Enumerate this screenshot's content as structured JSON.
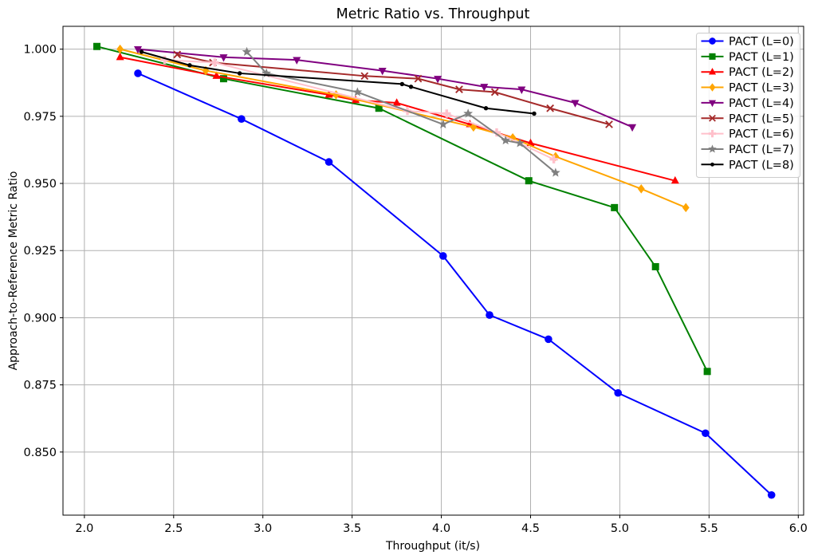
{
  "chart_data": {
    "type": "line",
    "title": "Metric Ratio vs. Throughput",
    "xlabel": "Throughput (it/s)",
    "ylabel": "Approach-to-Reference Metric Ratio",
    "xlim": [
      1.88,
      6.03
    ],
    "ylim": [
      0.8265,
      1.0085
    ],
    "grid": true,
    "grid_color": "#b0b0b0",
    "background": "#ffffff",
    "xticks": {
      "values": [
        2.0,
        2.5,
        3.0,
        3.5,
        4.0,
        4.5,
        5.0,
        5.5,
        6.0
      ],
      "labels": [
        "2.0",
        "2.5",
        "3.0",
        "3.5",
        "4.0",
        "4.5",
        "5.0",
        "5.5",
        "6.0"
      ]
    },
    "yticks": {
      "values": [
        0.85,
        0.875,
        0.9,
        0.925,
        0.95,
        0.975,
        1.0
      ],
      "labels": [
        "0.850",
        "0.875",
        "0.900",
        "0.925",
        "0.950",
        "0.975",
        "1.000"
      ]
    },
    "legend": {
      "position": "upper right",
      "entries": [
        "PACT (L=0)",
        "PACT (L=1)",
        "PACT (L=2)",
        "PACT (L=3)",
        "PACT (L=4)",
        "PACT (L=5)",
        "PACT (L=6)",
        "PACT (L=7)",
        "PACT (L=8)"
      ]
    },
    "series": [
      {
        "name": "PACT (L=0)",
        "color": "#0000ff",
        "marker": "circle",
        "points": [
          [
            2.3,
            0.991
          ],
          [
            2.88,
            0.974
          ],
          [
            3.37,
            0.958
          ],
          [
            4.01,
            0.923
          ],
          [
            4.27,
            0.901
          ],
          [
            4.6,
            0.892
          ],
          [
            4.99,
            0.872
          ],
          [
            5.48,
            0.857
          ],
          [
            5.85,
            0.834
          ]
        ]
      },
      {
        "name": "PACT (L=1)",
        "color": "#008000",
        "marker": "square",
        "points": [
          [
            2.07,
            1.001
          ],
          [
            2.78,
            0.989
          ],
          [
            3.65,
            0.978
          ],
          [
            4.49,
            0.951
          ],
          [
            4.97,
            0.941
          ],
          [
            5.2,
            0.919
          ],
          [
            5.49,
            0.88
          ]
        ]
      },
      {
        "name": "PACT (L=2)",
        "color": "#ff0000",
        "marker": "triangle-up",
        "points": [
          [
            2.2,
            0.997
          ],
          [
            2.74,
            0.99
          ],
          [
            3.37,
            0.983
          ],
          [
            3.52,
            0.981
          ],
          [
            3.75,
            0.98
          ],
          [
            4.16,
            0.972
          ],
          [
            4.5,
            0.965
          ],
          [
            5.31,
            0.951
          ]
        ]
      },
      {
        "name": "PACT (L=3)",
        "color": "#ffa500",
        "marker": "diamond",
        "points": [
          [
            2.2,
            1.0
          ],
          [
            2.68,
            0.992
          ],
          [
            3.41,
            0.983
          ],
          [
            4.18,
            0.971
          ],
          [
            4.4,
            0.967
          ],
          [
            4.64,
            0.96
          ],
          [
            5.12,
            0.948
          ],
          [
            5.37,
            0.941
          ]
        ]
      },
      {
        "name": "PACT (L=4)",
        "color": "#800080",
        "marker": "triangle-down",
        "points": [
          [
            2.3,
            1.0
          ],
          [
            2.78,
            0.997
          ],
          [
            3.19,
            0.996
          ],
          [
            3.67,
            0.992
          ],
          [
            3.98,
            0.989
          ],
          [
            4.24,
            0.986
          ],
          [
            4.45,
            0.985
          ],
          [
            4.75,
            0.98
          ],
          [
            5.07,
            0.971
          ]
        ]
      },
      {
        "name": "PACT (L=5)",
        "color": "#a52a2a",
        "marker": "x",
        "points": [
          [
            2.52,
            0.998
          ],
          [
            2.72,
            0.995
          ],
          [
            3.57,
            0.99
          ],
          [
            3.87,
            0.989
          ],
          [
            4.1,
            0.985
          ],
          [
            4.3,
            0.984
          ],
          [
            4.61,
            0.978
          ],
          [
            4.94,
            0.972
          ]
        ]
      },
      {
        "name": "PACT (L=6)",
        "color": "#ffc0cb",
        "marker": "plus",
        "points": [
          [
            2.45,
            0.996
          ],
          [
            2.73,
            0.995
          ],
          [
            3.81,
            0.977
          ],
          [
            4.03,
            0.976
          ],
          [
            4.31,
            0.969
          ],
          [
            4.63,
            0.959
          ]
        ]
      },
      {
        "name": "PACT (L=7)",
        "color": "#808080",
        "marker": "star",
        "points": [
          [
            2.91,
            0.999
          ],
          [
            3.02,
            0.991
          ],
          [
            3.53,
            0.984
          ],
          [
            4.01,
            0.972
          ],
          [
            4.15,
            0.976
          ],
          [
            4.36,
            0.966
          ],
          [
            4.44,
            0.965
          ],
          [
            4.64,
            0.954
          ]
        ]
      },
      {
        "name": "PACT (L=8)",
        "color": "#000000",
        "marker": "point",
        "points": [
          [
            2.32,
            0.999
          ],
          [
            2.59,
            0.994
          ],
          [
            2.87,
            0.991
          ],
          [
            3.78,
            0.987
          ],
          [
            3.83,
            0.986
          ],
          [
            4.25,
            0.978
          ],
          [
            4.52,
            0.976
          ]
        ]
      }
    ]
  }
}
